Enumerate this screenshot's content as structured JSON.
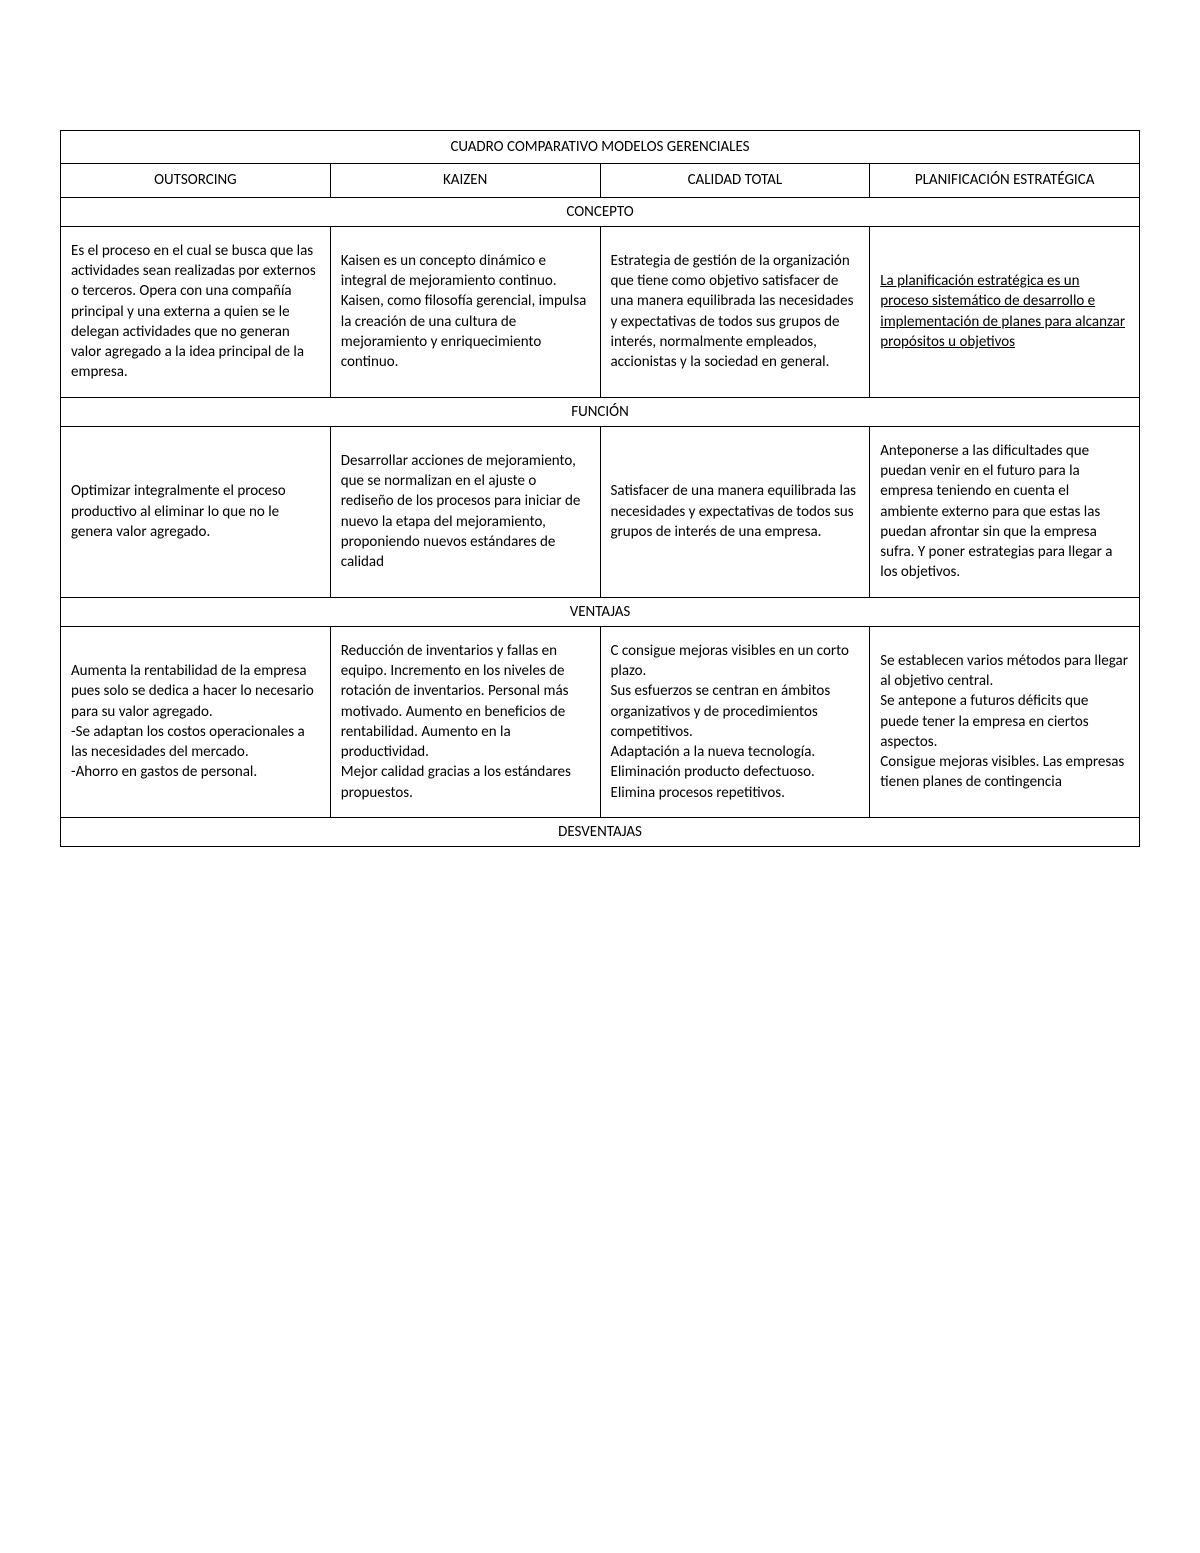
{
  "table": {
    "title": "CUADRO COMPARATIVO MODELOS GERENCIALES",
    "columns": [
      "OUTSORCING",
      "KAIZEN",
      "CALIDAD TOTAL",
      "PLANIFICACIÓN ESTRATÉGICA"
    ],
    "sections": [
      {
        "heading": "CONCEPTO",
        "cells": [
          "Es el proceso en el cual se busca que las actividades sean realizadas por externos o terceros. Opera con una compañía principal y una externa a quien se le delegan actividades que no generan valor agregado a la idea principal de la empresa.",
          "Kaisen es un concepto dinámico e integral de mejoramiento continuo. Kaisen, como filosofía gerencial, impulsa la creación de una cultura de mejoramiento y enriquecimiento continuo.",
          "Estrategia de gestión de la organización que tiene como objetivo satisfacer de una manera equilibrada las necesidades y expectativas de todos sus grupos de interés, normalmente empleados, accionistas y la sociedad en general.",
          "La planificación estratégica es un proceso sistemático de desarrollo e implementación de planes para alcanzar propósitos u objetivos"
        ],
        "underlined_index": 3
      },
      {
        "heading": "FUNCIÓN",
        "cells": [
          "Optimizar integralmente el proceso productivo al eliminar lo que no le genera valor agregado.",
          "Desarrollar acciones de mejoramiento, que se normalizan en el ajuste o rediseño de los procesos para iniciar  de nuevo la etapa del mejoramiento, proponiendo nuevos estándares de calidad",
          "Satisfacer de una manera equilibrada las necesidades y expectativas de todos sus grupos de interés de una empresa.",
          "Anteponerse a las dificultades que puedan venir en el futuro para la empresa teniendo en cuenta el ambiente externo para que estas las puedan afrontar sin que la empresa sufra. Y poner estrategias para llegar a los objetivos."
        ]
      },
      {
        "heading": "VENTAJAS",
        "cells": [
          "Aumenta la rentabilidad de la empresa pues solo se dedica a hacer lo necesario para su valor agregado.\n-Se adaptan los costos operacionales a las necesidades del mercado.\n-Ahorro en gastos de personal.",
          "Reducción de inventarios y fallas en equipo. Incremento en los niveles de rotación de inventarios. Personal más motivado. Aumento en beneficios de rentabilidad. Aumento en la productividad.\nMejor calidad gracias a los estándares propuestos.",
          "C consigue mejoras visibles en un corto plazo.\nSus esfuerzos se centran en ámbitos organizativos y de procedimientos competitivos.\nAdaptación a la nueva tecnología.\nEliminación producto defectuoso.\nElimina procesos repetitivos.",
          "Se establecen varios métodos para llegar al objetivo central.\nSe antepone a futuros déficits que puede tener la empresa en ciertos aspectos.\nConsigue mejoras visibles. Las empresas tienen planes de contingencia"
        ]
      },
      {
        "heading": "DESVENTAJAS"
      }
    ],
    "border_color": "#000000",
    "background_color": "#ffffff",
    "text_color": "#000000",
    "font_size": 15
  }
}
